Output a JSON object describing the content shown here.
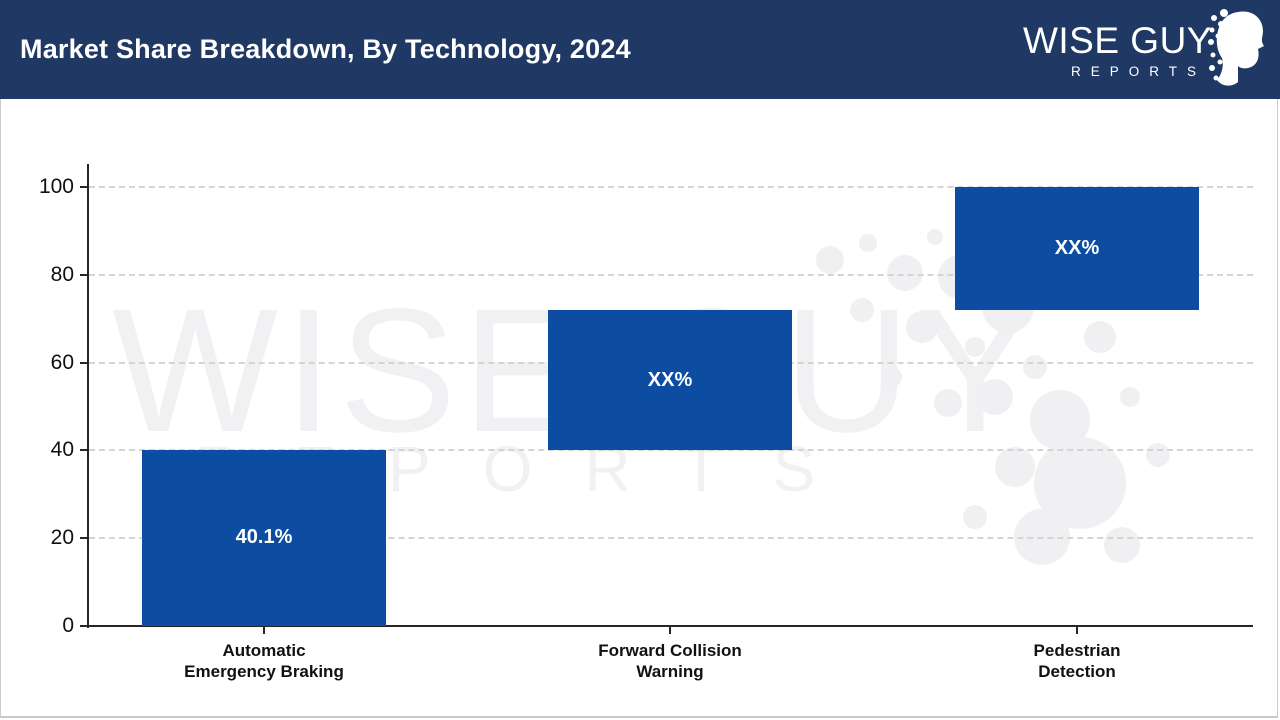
{
  "header": {
    "logo": {
      "wordmark": "WISE GUY",
      "reports": "REPORTS"
    }
  },
  "watermark": {
    "line1": "WISE GUY",
    "line2": "REPORTS"
  },
  "chart_data": {
    "type": "bar",
    "subtype": "waterfall",
    "title": "Market Share Breakdown, By Technology, 2024",
    "xlabel": "",
    "ylabel": "",
    "ylim": [
      0,
      100
    ],
    "yticks": [
      0,
      20,
      40,
      60,
      80,
      100
    ],
    "grid": "horizontal-dashed",
    "legend": "none",
    "categories": [
      "Automatic Emergency Braking",
      "Forward Collision Warning",
      "Pedestrian Detection"
    ],
    "segments": [
      {
        "category_lines": [
          "Automatic",
          "Emergency Braking"
        ],
        "start": 0,
        "end": 40.1,
        "label": "40.1%"
      },
      {
        "category_lines": [
          "Forward Collision",
          "Warning"
        ],
        "start": 40.1,
        "end": 71.9,
        "label": "XX%"
      },
      {
        "category_lines": [
          "Pedestrian",
          "Detection"
        ],
        "start": 71.9,
        "end": 100,
        "label": "XX%"
      }
    ],
    "colors": {
      "bar": "#0c4da2",
      "header_bg": "#1f3864",
      "axis": "#262626",
      "gridline": "#d4d4d4",
      "watermark": "#f1f1f3",
      "bar_label_text": "#ffffff"
    }
  }
}
